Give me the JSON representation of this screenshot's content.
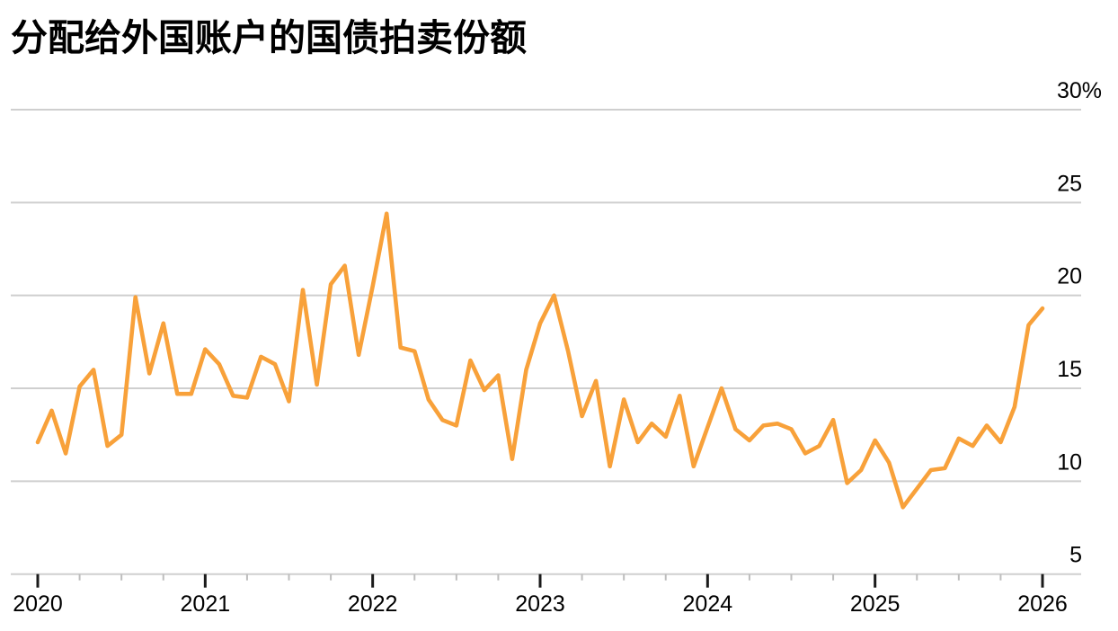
{
  "title": "分配给外国账户的国债拍卖份额",
  "colors": {
    "line": "#F8A13A",
    "grid": "#CFCFCF",
    "axis": "#C9C9C9",
    "major_tick": "#1A1A1A",
    "minor_tick": "#BDBDBD",
    "text": "#000000",
    "background": "#FFFFFF"
  },
  "chart_data": {
    "type": "line",
    "title": "分配给外国账户的国债拍卖份额",
    "xlabel": "",
    "ylabel": "",
    "unit": "%",
    "frequency": "monthly",
    "start": "2020-01",
    "end": "2026-01",
    "ylim": [
      5,
      30
    ],
    "y_ticks": [
      30,
      25,
      20,
      15,
      10,
      5
    ],
    "y_tick_labels": [
      "30%",
      "25",
      "20",
      "15",
      "10",
      "5"
    ],
    "x_tick_labels": [
      "2020",
      "2021",
      "2022",
      "2023",
      "2024",
      "2025",
      "2026"
    ],
    "minor_x_ticks": "quarterly",
    "grid": "horizontal",
    "legend": "none",
    "values": [
      12.1,
      13.8,
      11.5,
      15.1,
      16.0,
      11.9,
      12.5,
      19.9,
      15.8,
      18.5,
      14.7,
      14.7,
      17.1,
      16.3,
      14.6,
      14.5,
      16.7,
      16.3,
      14.3,
      20.3,
      15.2,
      20.6,
      21.6,
      16.8,
      20.5,
      24.4,
      17.2,
      17.0,
      14.4,
      13.3,
      13.0,
      16.5,
      14.9,
      15.7,
      11.2,
      16.0,
      18.5,
      20.0,
      17.0,
      13.5,
      15.4,
      10.8,
      14.4,
      12.1,
      13.1,
      12.4,
      14.6,
      10.8,
      12.9,
      15.0,
      12.8,
      12.2,
      13.0,
      13.1,
      12.8,
      11.5,
      11.9,
      13.3,
      9.9,
      10.6,
      12.2,
      11.0,
      8.6,
      9.6,
      10.6,
      10.7,
      12.3,
      11.9,
      13.0,
      12.1,
      14.0,
      18.4,
      19.3
    ]
  }
}
